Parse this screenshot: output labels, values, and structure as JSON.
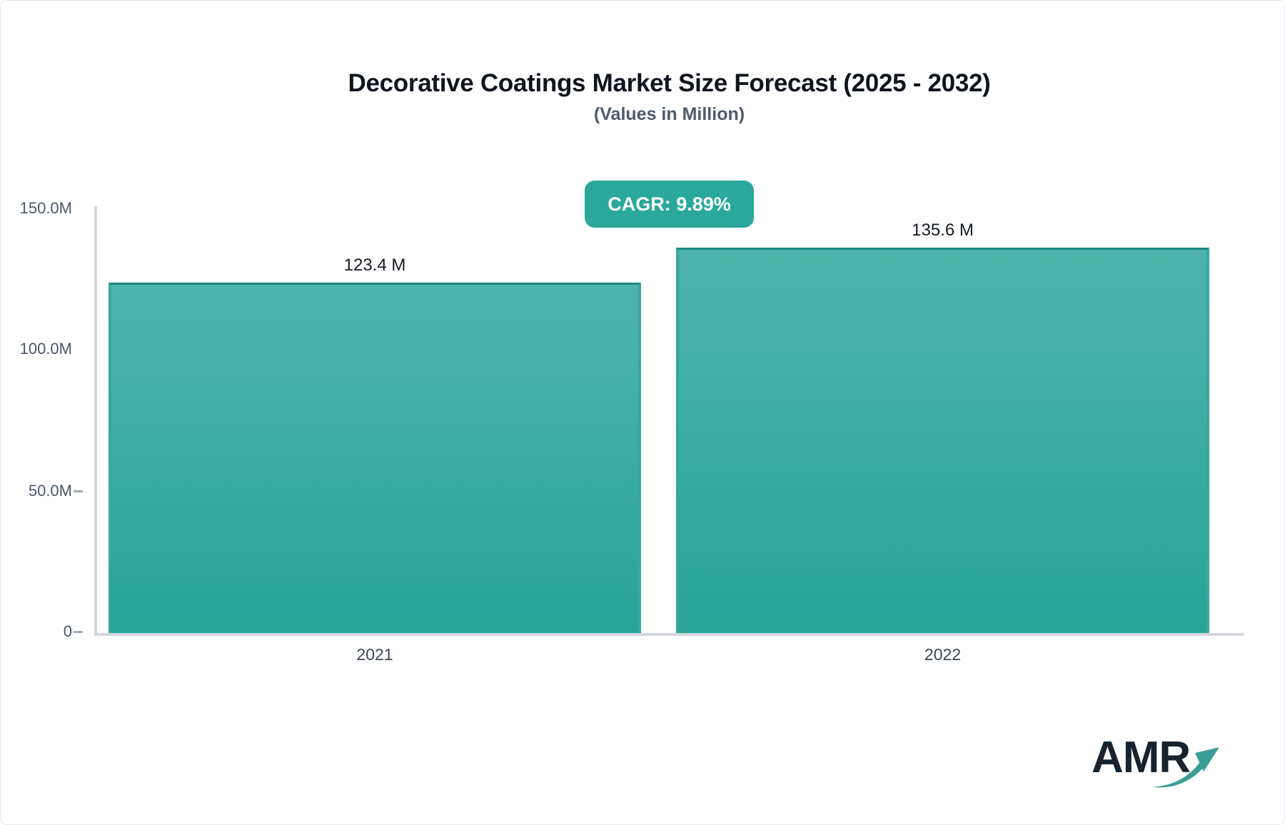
{
  "chart": {
    "title": "Decorative Coatings Market Size Forecast (2025 - 2032)",
    "subtitle": "(Values in Million)",
    "cagr_label": "CAGR: 9.89%",
    "logo_text": "AMR"
  },
  "chart_data": {
    "type": "bar",
    "title": "Decorative Coatings Market Size Forecast (2025 - 2032)",
    "subtitle": "(Values in Million)",
    "unit": "Million",
    "cagr_percent": 9.89,
    "categories": [
      "2021",
      "2022"
    ],
    "values": [
      123.4,
      135.6
    ],
    "value_labels": [
      "123.4 M",
      "135.6 M"
    ],
    "xlabel": "",
    "ylabel": "",
    "ylim": [
      0,
      150
    ],
    "ytick_labels": [
      "150.0M",
      "100.0M",
      "50.0M",
      "0"
    ],
    "grid": false,
    "legend": "none",
    "colors": {
      "bar_gradient_top": "#4fb4ab",
      "bar_gradient_bottom": "#28a396",
      "bar_border": "#18897d",
      "badge_background": "#2aa89b",
      "badge_text": "#ffffff",
      "axis_line": "#d3d7dd",
      "tick_text": "#4b5766",
      "logo_navy": "#16242f",
      "logo_teal": "#3a9d94"
    }
  }
}
